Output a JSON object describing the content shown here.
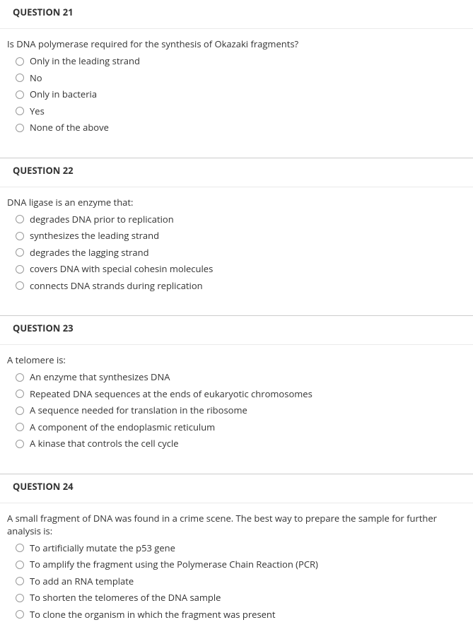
{
  "questions": [
    {
      "header": "QUESTION 21",
      "prompt": "Is DNA polymerase required for the synthesis of Okazaki fragments?",
      "options": [
        "Only in the leading strand",
        "No",
        "Only in bacteria",
        "Yes",
        "None of the above"
      ]
    },
    {
      "header": "QUESTION 22",
      "prompt": "DNA ligase is an enzyme that:",
      "options": [
        "degrades DNA prior to replication",
        "synthesizes the leading strand",
        "degrades the lagging strand",
        "covers DNA with special cohesin molecules",
        "connects DNA strands during replication"
      ]
    },
    {
      "header": "QUESTION 23",
      "prompt": "A telomere is:",
      "options": [
        "An enzyme that synthesizes DNA",
        "Repeated DNA sequences at the ends of eukaryotic chromosomes",
        "A sequence needed for translation in the ribosome",
        "A component of the endoplasmic reticulum",
        "A kinase that controls the cell cycle"
      ]
    },
    {
      "header": "QUESTION 24",
      "prompt": "A small fragment of DNA was found in a crime scene. The best way to prepare the sample for further analysis is:",
      "options": [
        "To artificially mutate the p53 gene",
        "To amplify the fragment using the Polymerase Chain Reaction (PCR)",
        "To add an RNA template",
        "To shorten the telomeres of the DNA sample",
        "To clone the organism in which the fragment was present"
      ]
    }
  ]
}
